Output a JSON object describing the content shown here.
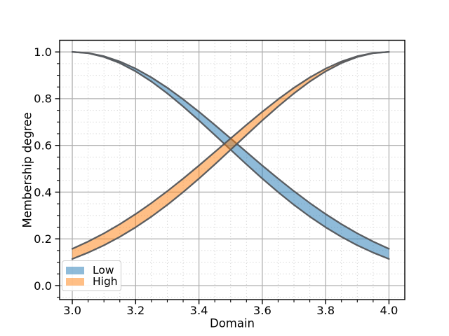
{
  "chart_data": {
    "type": "area",
    "title": "",
    "xlabel": "Domain",
    "ylabel": "Membership degree",
    "xlim": [
      2.96,
      4.05
    ],
    "ylim": [
      -0.06,
      1.05
    ],
    "xticks": {
      "values": [
        3.0,
        3.2,
        3.4,
        3.6,
        3.8,
        4.0
      ],
      "labels": [
        "3.0",
        "3.2",
        "3.4",
        "3.6",
        "3.8",
        "4.0"
      ]
    },
    "yticks": {
      "values": [
        0.0,
        0.2,
        0.4,
        0.6,
        0.8,
        1.0
      ],
      "labels": [
        "0.0",
        "0.2",
        "0.4",
        "0.6",
        "0.8",
        "1.0"
      ]
    },
    "minor_step": 0.05,
    "grid": {
      "major": true,
      "minor": true,
      "major_color": "#b0b0b0",
      "minor_color": "#c9c9c9"
    },
    "legend_position": "lower left",
    "x": [
      3.0,
      3.05,
      3.1,
      3.15,
      3.2,
      3.25,
      3.3,
      3.35,
      3.4,
      3.45,
      3.5,
      3.55,
      3.6,
      3.65,
      3.7,
      3.75,
      3.8,
      3.85,
      3.9,
      3.95,
      4.0
    ],
    "series": [
      {
        "name": "Low",
        "color": "#1f77b4",
        "fill_opacity": 0.5,
        "edge_color": "#54575b",
        "upper": [
          1.0,
          0.9954,
          0.9817,
          0.9592,
          0.9287,
          0.8909,
          0.8467,
          0.7973,
          0.7439,
          0.6877,
          0.6298,
          0.5716,
          0.5139,
          0.4578,
          0.4041,
          0.3534,
          0.3062,
          0.2629,
          0.2236,
          0.1885,
          0.1574
        ],
        "lower": [
          1.0,
          0.9946,
          0.9785,
          0.9523,
          0.9169,
          0.8732,
          0.8226,
          0.7666,
          0.7067,
          0.6444,
          0.5813,
          0.5187,
          0.4578,
          0.3998,
          0.3453,
          0.295,
          0.2494,
          0.2085,
          0.1724,
          0.1411,
          0.1141
        ]
      },
      {
        "name": "High",
        "color": "#ff7f0e",
        "fill_opacity": 0.5,
        "edge_color": "#54575b",
        "upper": [
          0.1574,
          0.1885,
          0.2236,
          0.2629,
          0.3062,
          0.3534,
          0.4041,
          0.4578,
          0.5139,
          0.5716,
          0.6298,
          0.6877,
          0.7439,
          0.7973,
          0.8467,
          0.8909,
          0.9287,
          0.9592,
          0.9817,
          0.9954,
          1.0
        ],
        "lower": [
          0.1141,
          0.1411,
          0.1724,
          0.2085,
          0.2494,
          0.295,
          0.3453,
          0.3998,
          0.4578,
          0.5187,
          0.5813,
          0.6444,
          0.7067,
          0.7666,
          0.8226,
          0.8732,
          0.9169,
          0.9523,
          0.9785,
          0.9946,
          1.0
        ]
      }
    ],
    "spine_color": "#000000",
    "tick_color": "#000000"
  }
}
